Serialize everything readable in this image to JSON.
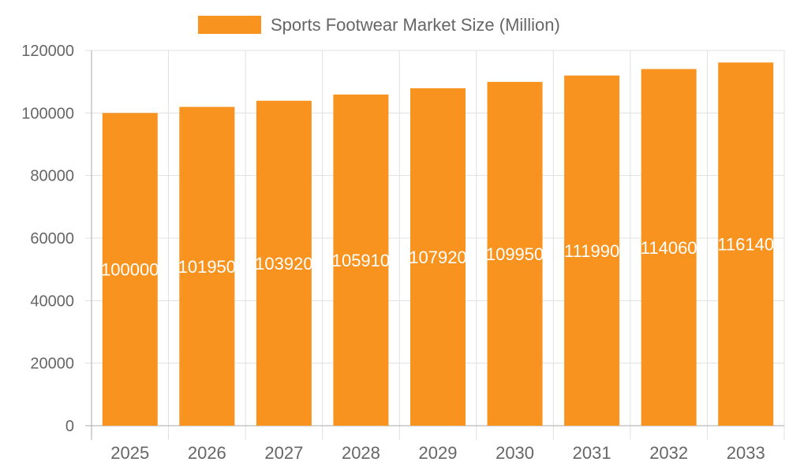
{
  "chart_data": {
    "type": "bar",
    "categories": [
      "2025",
      "2026",
      "2027",
      "2028",
      "2029",
      "2030",
      "2031",
      "2032",
      "2033"
    ],
    "series": [
      {
        "name": "Sports Footwear Market Size (Million)",
        "values": [
          100000,
          101950,
          103920,
          105910,
          107920,
          109950,
          111990,
          114060,
          116140
        ]
      }
    ],
    "ylim": [
      0,
      120000
    ],
    "yticks": [
      0,
      20000,
      40000,
      60000,
      80000,
      100000,
      120000
    ],
    "grid": true,
    "legend": "top",
    "color": "#f7931e",
    "data_labels": true
  }
}
